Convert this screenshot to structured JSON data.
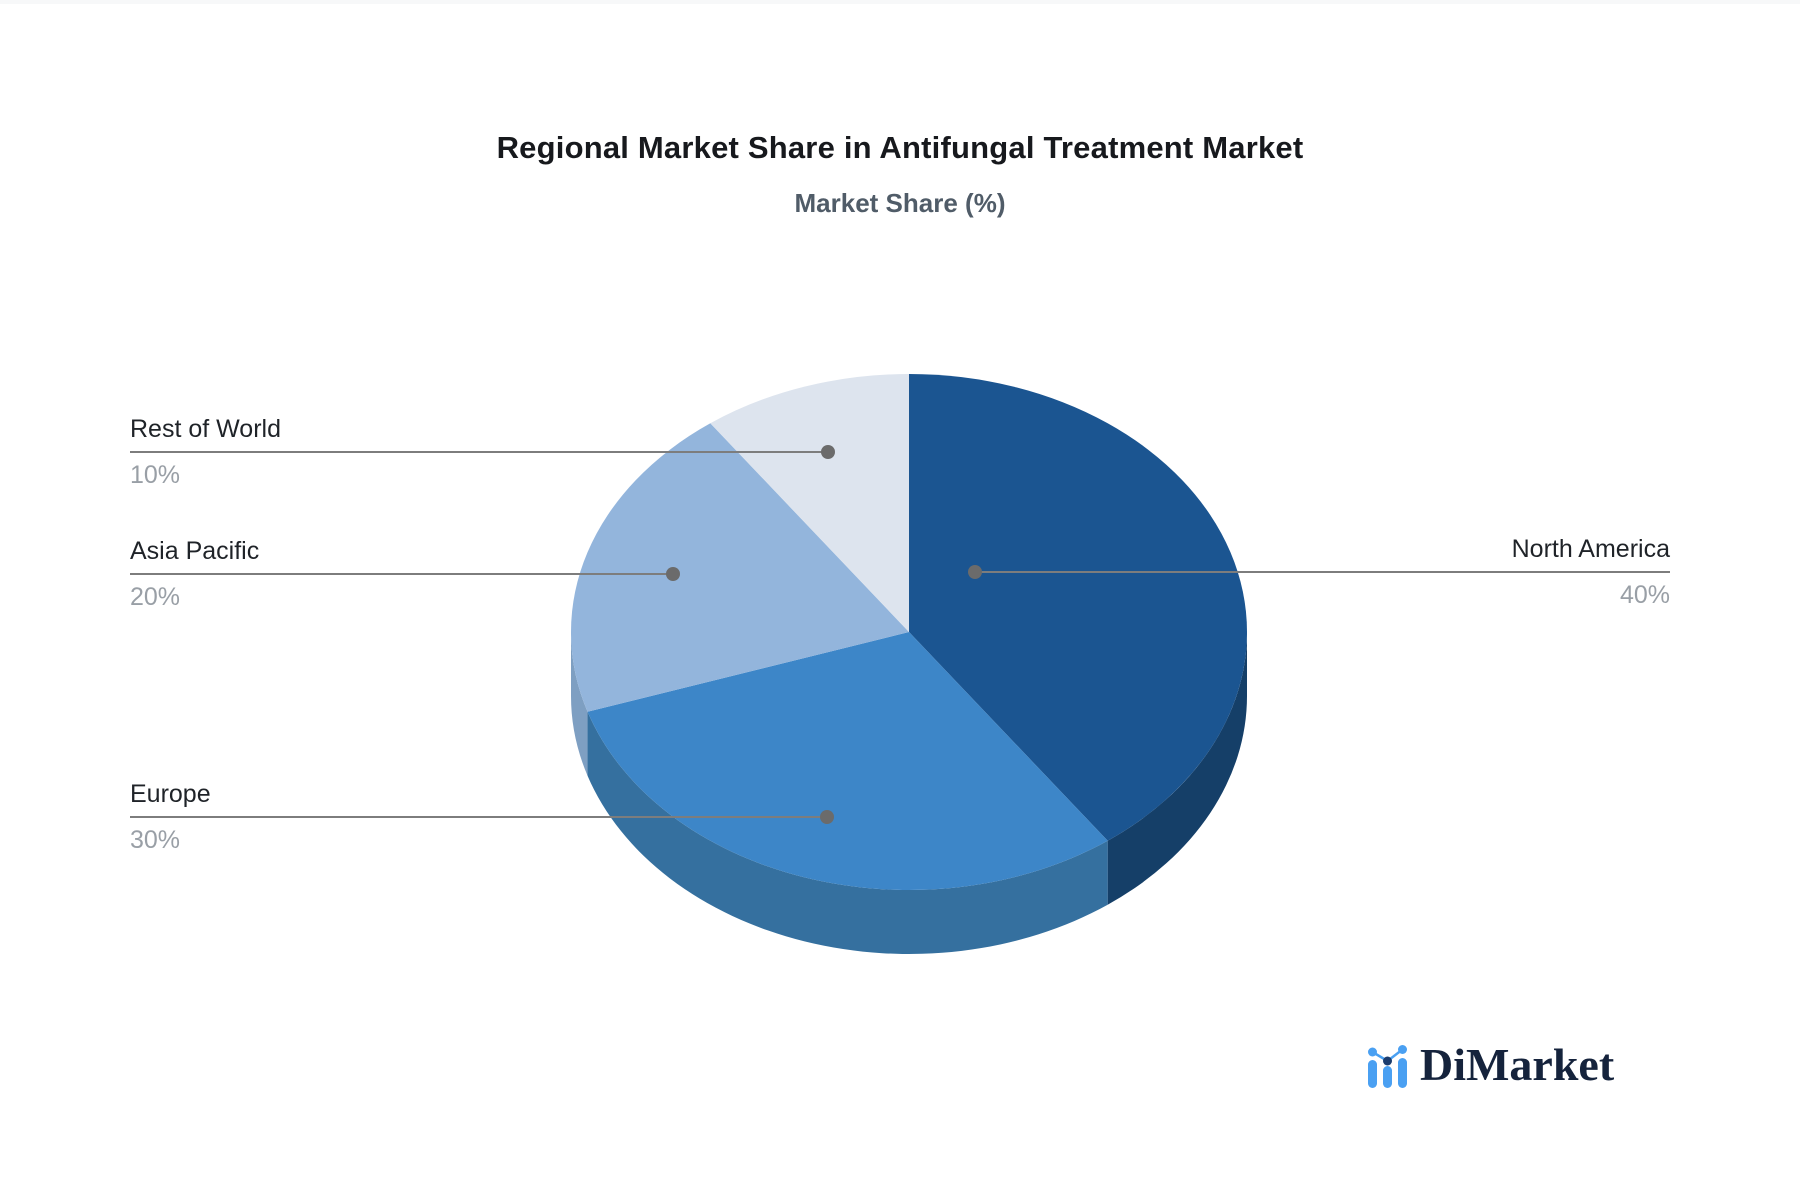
{
  "page": {
    "background": "#ffffff",
    "top_strip_color": "#f7f8f9"
  },
  "header": {
    "title": "Regional Market Share in Antifungal Treatment Market",
    "subtitle": "Market Share (%)"
  },
  "chart_data": {
    "type": "pie",
    "title": "Regional Market Share in Antifungal Treatment Market",
    "subtitle": "Market Share (%)",
    "unit": "%",
    "style": "3d",
    "start_angle_deg": 0,
    "direction": "clockwise",
    "total": 100,
    "legend": "none",
    "labels_position": "callout",
    "slices": [
      {
        "label": "North America",
        "value": 40,
        "pct_label": "40%",
        "color": "#1b5591",
        "side_color": "#153f68"
      },
      {
        "label": "Europe",
        "value": 30,
        "pct_label": "30%",
        "color": "#3d86c8",
        "side_color": "#35709f"
      },
      {
        "label": "Asia Pacific",
        "value": 20,
        "pct_label": "20%",
        "color": "#93b5dc",
        "side_color": "#7e9fc2"
      },
      {
        "label": "Rest of World",
        "value": 10,
        "pct_label": "10%",
        "color": "#dde4ee",
        "side_color": "#b9c5d6"
      }
    ],
    "callout_line_color": "#7d7d7d",
    "callout_dot_color": "#6b6b6b",
    "label_name_color": "#1f2328",
    "label_pct_color": "#999fa6"
  },
  "branding": {
    "wordmark": "DiMarket",
    "wordmark_color": "#15233c",
    "icon": "bar-chart-logo-icon",
    "icon_bar_color": "#4aa0f2",
    "icon_dot_dark_color": "#1b3c6e"
  }
}
